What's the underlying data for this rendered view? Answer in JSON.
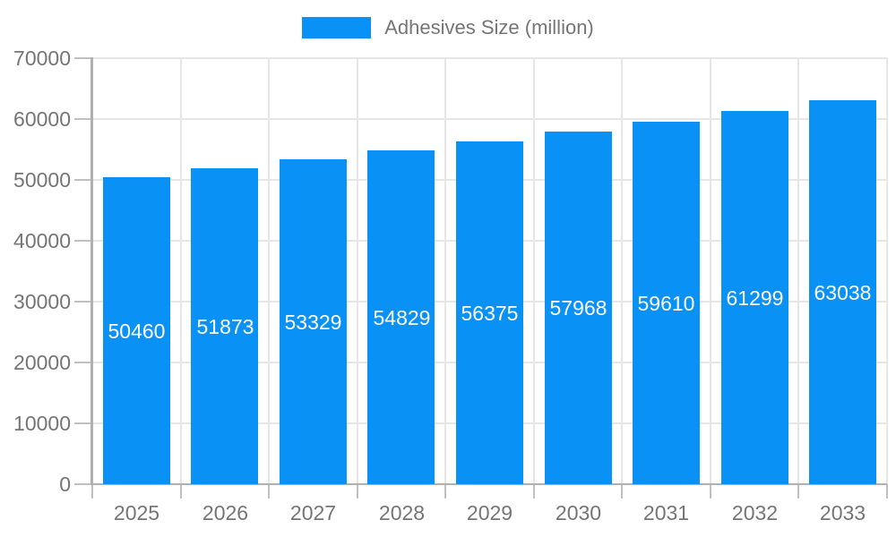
{
  "legend": {
    "label": "Adhesives Size (million)",
    "position": "top"
  },
  "chart_data": {
    "type": "bar",
    "title": "",
    "xlabel": "",
    "ylabel": "",
    "categories": [
      "2025",
      "2026",
      "2027",
      "2028",
      "2029",
      "2030",
      "2031",
      "2032",
      "2033"
    ],
    "series": [
      {
        "name": "Adhesives Size (million)",
        "values": [
          50460,
          51873,
          53329,
          54829,
          56375,
          57968,
          59610,
          61299,
          63038
        ]
      }
    ],
    "bar_value_labels": [
      "50460",
      "51873",
      "53329",
      "54829",
      "56375",
      "57968",
      "59610",
      "61299",
      "63038"
    ],
    "ylim": [
      0,
      70000
    ],
    "ytick_step": 10000,
    "ytick_labels": [
      "0",
      "10000",
      "20000",
      "30000",
      "40000",
      "50000",
      "60000",
      "70000"
    ],
    "grid": "on",
    "legend_position": "top"
  },
  "colors": {
    "bar": "#0a91f5",
    "grid": "#e6e6e6",
    "axis": "#b0b0b0",
    "tick": "#c0c0c0",
    "text": "#757575",
    "bar_label_text": "#ffffff",
    "background": "#ffffff"
  }
}
